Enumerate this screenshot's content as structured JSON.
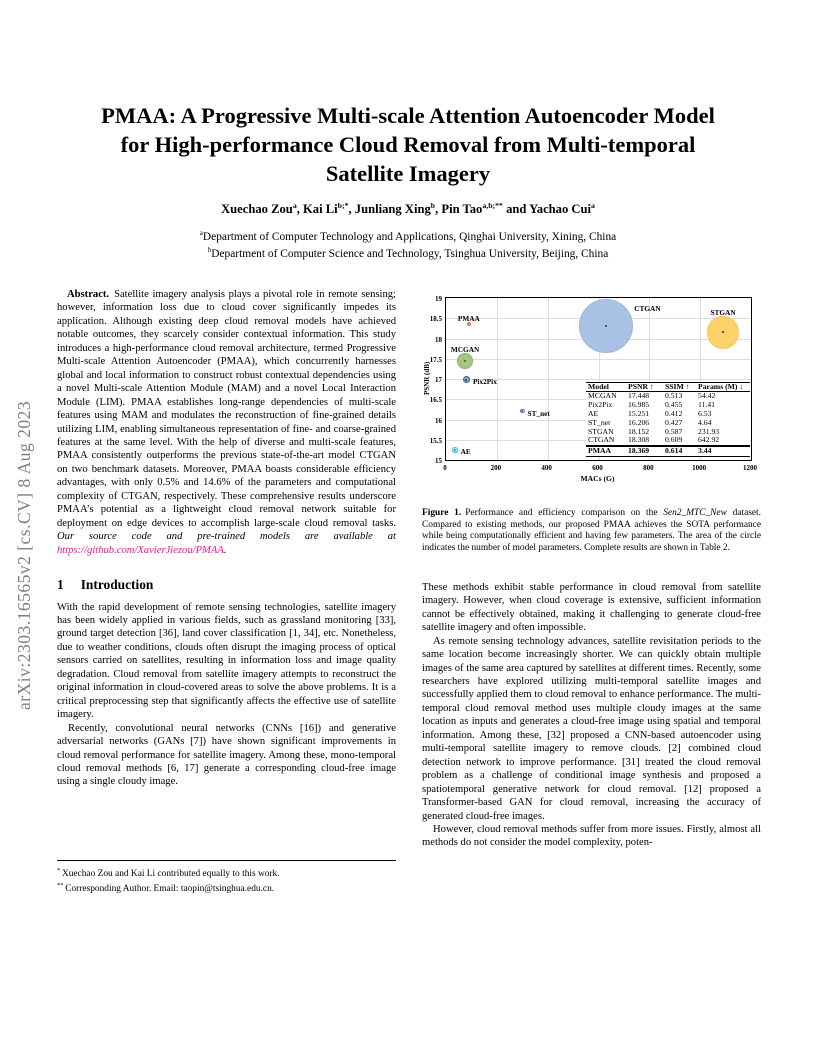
{
  "arxiv_banner": "arXiv:2303.16565v2  [cs.CV]  8 Aug 2023",
  "title": "PMAA: A Progressive Multi-scale Attention Autoencoder Model for High-performance Cloud Removal from Multi-temporal Satellite Imagery",
  "authors": [
    {
      "name": "Xuechao Zou",
      "sup": "a",
      "sep": ", "
    },
    {
      "name": "Kai Li",
      "sup": "b;*",
      "sep": ", "
    },
    {
      "name": "Junliang Xing",
      "sup": "b",
      "sep": ", "
    },
    {
      "name": "Pin Tao",
      "sup": "a,b;**",
      "sep": " and "
    },
    {
      "name": "Yachao Cui",
      "sup": "a",
      "sep": ""
    }
  ],
  "affiliations": [
    {
      "sup": "a",
      "text": "Department of Computer Technology and Applications, Qinghai University, Xining, China"
    },
    {
      "sup": "b",
      "text": "Department of Computer Science and Technology, Tsinghua University, Beijing, China"
    }
  ],
  "abstract": {
    "label": "Abstract.",
    "body": "Satellite imagery analysis plays a pivotal role in remote sensing; however, information loss due to cloud cover significantly impedes its application. Although existing deep cloud removal models have achieved notable outcomes, they scarcely consider contextual information. This study introduces a high-performance cloud removal architecture, termed Progressive Multi-scale Attention Autoencoder (PMAA), which concurrently harnesses global and local information to construct robust contextual dependencies using a novel Multi-scale Attention Module (MAM) and a novel Local Interaction Module (LIM). PMAA establishes long-range dependencies of multi-scale features using MAM and modulates the reconstruction of fine-grained details utilizing LIM, enabling simultaneous representation of fine- and coarse-grained features at the same level. With the help of diverse and multi-scale features, PMAA consistently outperforms the previous state-of-the-art model CTGAN on two benchmark datasets. Moreover, PMAA boasts considerable efficiency advantages, with only 0.5% and 14.6% of the parameters and computational complexity of CTGAN, respectively. These comprehensive results underscore PMAA’s potential as a lightweight cloud removal network suitable for deployment on edge devices to accomplish large-scale cloud removal tasks.",
    "tail_italic": "Our source code and pre-trained models are available at",
    "link": "https://github.com/XavierJiezou/PMAA",
    "tail_period": "."
  },
  "section1": {
    "number": "1",
    "title": "Introduction",
    "paragraphs": [
      "With the rapid development of remote sensing technologies, satellite imagery has been widely applied in various fields, such as grassland monitoring [33], ground target detection [36], land cover classification [1, 34], etc. Nonetheless, due to weather conditions, clouds often disrupt the imaging process of optical sensors carried on satellites, resulting in information loss and image quality degradation. Cloud removal from satellite imagery attempts to reconstruct the original information in cloud-covered areas to solve the above problems. It is a critical preprocessing step that significantly affects the effective use of satellite imagery.",
      "Recently, convolutional neural networks (CNNs [16]) and generative adversarial networks (GANs [7]) have shown significant improvements in cloud removal performance for satellite imagery. Among these, mono-temporal cloud removal methods [6, 17] generate a corresponding cloud-free image using a single cloudy image."
    ]
  },
  "footnotes": [
    {
      "marker": "*",
      "text": "Xuechao Zou and Kai Li contributed equally to this work."
    },
    {
      "marker": "**",
      "text": "Corresponding Author. Email: taopin@tsinghua.edu.cn."
    }
  ],
  "figure": {
    "caption_label": "Figure 1.",
    "caption_pre": "Performance and efficiency comparison on the",
    "caption_dataset": "Sen2_MTC_New",
    "caption_post": "dataset. Compared to existing methods, our proposed PMAA achieves the SOTA performance while being computationally efficient and having few parameters. The area of the circle indicates the number of model parameters. Complete results are shown in Table 2."
  },
  "chart_data": {
    "type": "scatter",
    "title": "",
    "xlabel": "MACs (G)",
    "ylabel": "PSNR (dB)",
    "xlim": [
      0,
      1200
    ],
    "ylim": [
      15,
      19
    ],
    "xticks": [
      0,
      200,
      400,
      600,
      800,
      1000,
      1200
    ],
    "yticks": [
      15,
      15.5,
      16,
      16.5,
      17,
      17.5,
      18,
      18.5,
      19
    ],
    "grid": true,
    "bubble_area_encodes": "Params (M)",
    "points": [
      {
        "model": "PMAA",
        "macs_g": 90,
        "psnr_db": 18.369,
        "params_m": 3.44,
        "color": "#ffffff",
        "edge": "#e8703a",
        "dot": "#e8703a",
        "label_pos": "above"
      },
      {
        "model": "MCGAN",
        "macs_g": 75,
        "psnr_db": 17.448,
        "params_m": 54.42,
        "color": "#a3c585",
        "edge": "#8db56c",
        "dot": "#3c5e2a",
        "label_pos": "above"
      },
      {
        "model": "Pix2Pix",
        "macs_g": 80,
        "psnr_db": 16.985,
        "params_m": 11.41,
        "color": "#8aa3c7",
        "edge": "#3d5c92",
        "dot": "#22365c",
        "label_pos": "right"
      },
      {
        "model": "AE",
        "macs_g": 35,
        "psnr_db": 15.251,
        "params_m": 6.53,
        "color": "#aee3f7",
        "edge": "#49bde9",
        "dot": "#2b86b3",
        "label_pos": "right"
      },
      {
        "model": "ST_net",
        "macs_g": 300,
        "psnr_db": 16.206,
        "params_m": 4.64,
        "color": "#e3d3ee",
        "edge": "#9b6fc0",
        "dot": "#6d4391",
        "label_pos": "right"
      },
      {
        "model": "CTGAN",
        "macs_g": 630,
        "psnr_db": 18.308,
        "params_m": 642.92,
        "color": "#a9c1e4",
        "edge": "#9cb5dc",
        "dot": "#20355c",
        "label_pos": "above-right"
      },
      {
        "model": "STGAN",
        "macs_g": 1090,
        "psnr_db": 18.152,
        "params_m": 231.93,
        "color": "#fad269",
        "edge": "#f5c95b",
        "dot": "#20355c",
        "label_pos": "above"
      }
    ],
    "table": {
      "headers": [
        "Model",
        "PSNR ↑",
        "SSIM ↑",
        "Params (M) ↓"
      ],
      "rows": [
        [
          "MCGAN",
          "17.448",
          "0.513",
          "54.42"
        ],
        [
          "Pix2Pix",
          "16.985",
          "0.455",
          "11.41"
        ],
        [
          "AE",
          "15.251",
          "0.412",
          "6.53"
        ],
        [
          "ST_net",
          "16.206",
          "0.427",
          "4.64"
        ],
        [
          "STGAN",
          "18.152",
          "0.587",
          "231.93"
        ],
        [
          "CTGAN",
          "18.308",
          "0.609",
          "642.92"
        ]
      ],
      "highlight_row": [
        "PMAA",
        "18.369",
        "0.614",
        "3.44"
      ]
    }
  },
  "right_column": {
    "paragraphs": [
      "These methods exhibit stable performance in cloud removal from satellite imagery. However, when cloud coverage is extensive, sufficient information cannot be effectively obtained, making it challenging to generate cloud-free satellite imagery and often impossible.",
      "As remote sensing technology advances, satellite revisitation periods to the same location become increasingly shorter. We can quickly obtain multiple images of the same area captured by satellites at different times. Recently, some researchers have explored utilizing multi-temporal satellite images and successfully applied them to cloud removal to enhance performance. The multi-temporal cloud removal method uses multiple cloudy images at the same location as inputs and generates a cloud-free image using spatial and temporal information. Among these, [32] proposed a CNN-based autoencoder using multi-temporal satellite imagery to remove clouds. [2] combined cloud detection network to improve performance. [31] treated the cloud removal problem as a challenge of conditional image synthesis and proposed a spatiotemporal generative network for cloud removal. [12] proposed a Transformer-based GAN for cloud removal, increasing the accuracy of generated cloud-free images.",
      "However, cloud removal methods suffer from more issues. Firstly, almost all methods do not consider the model complexity, poten-"
    ]
  },
  "colors": {
    "link": "#e0218a",
    "arxiv_gray": "#7e7e7e",
    "gridline": "#dcdcdc"
  }
}
